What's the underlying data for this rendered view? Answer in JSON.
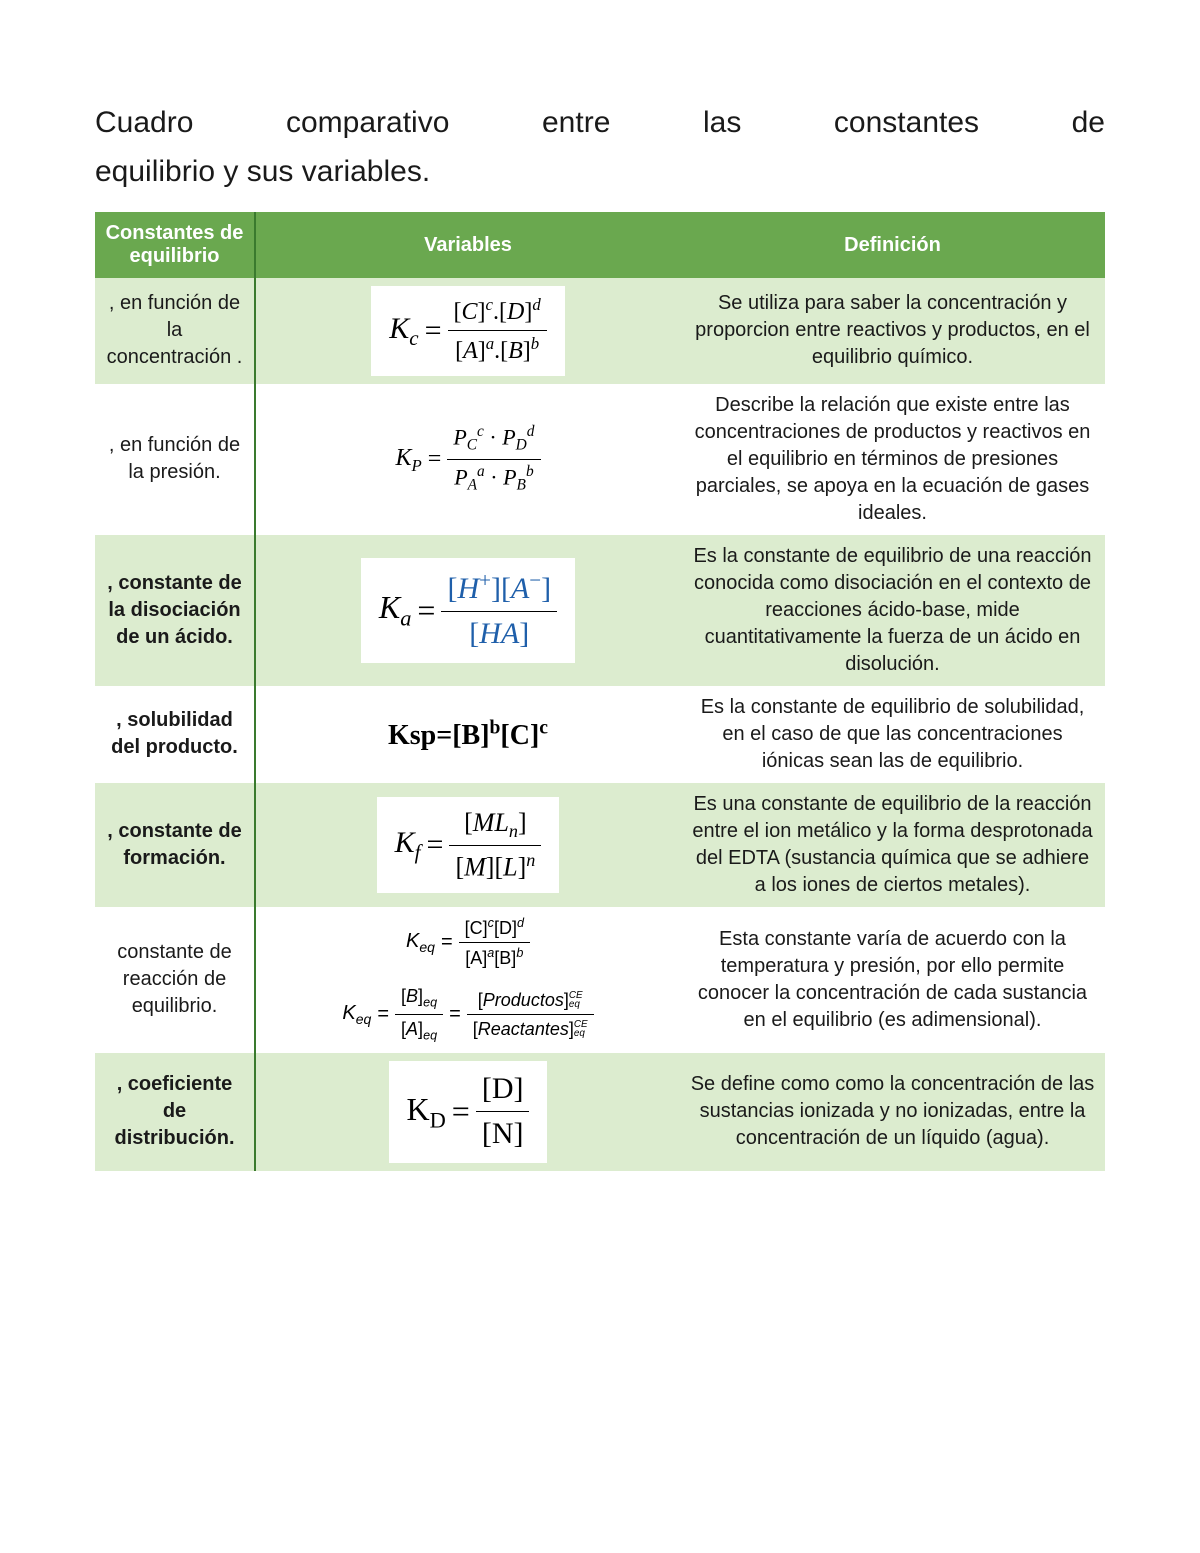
{
  "title_line1": "Cuadro comparativo entre las constantes de",
  "title_line2": "equilibrio y sus variables.",
  "headers": {
    "col1": "Constantes de equilibrio",
    "col2": "Variables",
    "col3": "Definición"
  },
  "rows": [
    {
      "name": ", en función de la concentración .",
      "def": "Se utiliza para saber la concentración y proporcion entre reactivos y productos, en el equilibrio químico.",
      "formula": {
        "type": "Kc",
        "left": "K",
        "leftsub": "c",
        "num": "[C]ᶜ.[D]ᵈ",
        "den": "[A]ᵃ.[B]ᵇ"
      }
    },
    {
      "name": ", en función de la presión.",
      "def": "Describe la relación que existe entre las concentraciones de productos y reactivos en el equilibrio en términos de presiones parciales, se apoya en la ecuación de gases ideales.",
      "formula": {
        "type": "Kp"
      }
    },
    {
      "name": ", constante de la disociación de un ácido.",
      "def": "Es la constante de equilibrio de una reacción conocida como disociación en el contexto de reacciones ácido-base, mide cuantitativamente la fuerza de un ácido en disolución.",
      "formula": {
        "type": "Ka"
      }
    },
    {
      "name": ", solubilidad del producto.",
      "def": "Es la constante de equilibrio de solubilidad, en el caso de que las concentraciones iónicas sean las de equilibrio.",
      "formula": {
        "type": "Ksp"
      }
    },
    {
      "name": ", constante de formación.",
      "def": "Es una constante de equilibrio de la reacción entre el ion metálico y la forma desprotonada del EDTA (sustancia química que se adhiere a los iones de ciertos metales).",
      "formula": {
        "type": "Kf"
      }
    },
    {
      "name": "constante de reacción de equilibrio.",
      "def": "Esta constante varía de acuerdo con la temperatura y presión, por ello permite conocer la concentración de cada sustancia en el equilibrio (es adimensional).",
      "formula": {
        "type": "Keq"
      }
    },
    {
      "name": ", coeficiente de distribución.",
      "def": "Se define como como la concentración de las sustancias ionizada y no ionizadas, entre la concentración de un líquido (agua).",
      "formula": {
        "type": "Kd"
      }
    }
  ],
  "colors": {
    "header_bg": "#6aa84f",
    "header_text": "#ffffff",
    "tint_bg": "#dceccf",
    "plain_bg": "#ffffff",
    "divider": "#3a7a2e",
    "formula_blue": "#1f5faa"
  }
}
